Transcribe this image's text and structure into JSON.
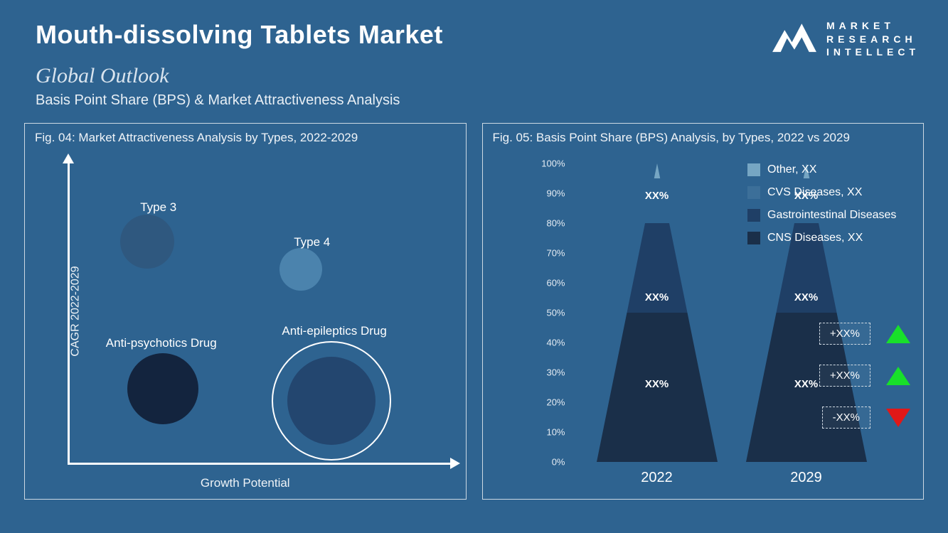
{
  "title": "Mouth-dissolving Tablets Market",
  "logo": {
    "line1": "MARKET",
    "line2": "RESEARCH",
    "line3": "INTELLECT"
  },
  "outlook": "Global Outlook",
  "subtitle": "Basis Point Share (BPS) & Market Attractiveness  Analysis",
  "colors": {
    "bg": "#2e6390",
    "axis": "#ffffff",
    "border": "#cdd9e3",
    "tickText": "#e5ecf3"
  },
  "left": {
    "figTitle": "Fig. 04: Market Attractiveness Analysis by Types, 2022-2029",
    "yLabel": "CAGR 2022-2029",
    "xLabel": "Growth Potential",
    "bubbles": [
      {
        "label": "Type 3",
        "x": 18,
        "y": 72,
        "r": 38,
        "color": "#2f587f",
        "labelDx": -10,
        "labelDy": -58
      },
      {
        "label": "Type 4",
        "x": 58,
        "y": 63,
        "r": 30,
        "color": "#4b83ad",
        "labelDx": -10,
        "labelDy": -48
      },
      {
        "label": "Anti-psychotics Drug",
        "x": 22,
        "y": 24,
        "r": 50,
        "color": "#13243e",
        "labelDx": -80,
        "labelDy": -74
      },
      {
        "label": "Anti-epileptics Drug",
        "x": 66,
        "y": 20,
        "r": 62,
        "color": "#23466f",
        "ring": 84,
        "labelDx": -70,
        "labelDy": -108
      }
    ]
  },
  "right": {
    "figTitle": "Fig. 05: Basis Point Share (BPS) Analysis, by Types, 2022 vs 2029",
    "yTicks": [
      "0%",
      "10%",
      "20%",
      "30%",
      "40%",
      "50%",
      "60%",
      "70%",
      "80%",
      "90%",
      "100%"
    ],
    "xLabels": [
      "2022",
      "2029"
    ],
    "coneHeight": 420,
    "segments": [
      {
        "name": "CNS Diseases, XX",
        "color": "#1a2f49",
        "pct": 50,
        "label": "XX%",
        "labelY": 26
      },
      {
        "name": "Gastrointestinal Diseases",
        "color": "#1f3f66",
        "pct": 30,
        "label": "XX%",
        "labelY": 55
      },
      {
        "name": "CVS Diseases, XX",
        "color": "#2e6390",
        "pct": 15,
        "label": "XX%",
        "labelY": 89
      },
      {
        "name": "Other, XX",
        "color": "#76a6c3",
        "pct": 5,
        "label": "",
        "labelY": 0
      }
    ],
    "legend": [
      {
        "color": "#76a6c3",
        "text": "Other, XX"
      },
      {
        "color": "#3c6f99",
        "text": "CVS Diseases, XX"
      },
      {
        "color": "#1f3f66",
        "text": "Gastrointestinal Diseases"
      },
      {
        "color": "#1a2f49",
        "text": "CNS Diseases, XX"
      }
    ],
    "indicators": [
      {
        "text": "+XX%",
        "dir": "up"
      },
      {
        "text": "+XX%",
        "dir": "up"
      },
      {
        "text": "-XX%",
        "dir": "down"
      }
    ]
  }
}
